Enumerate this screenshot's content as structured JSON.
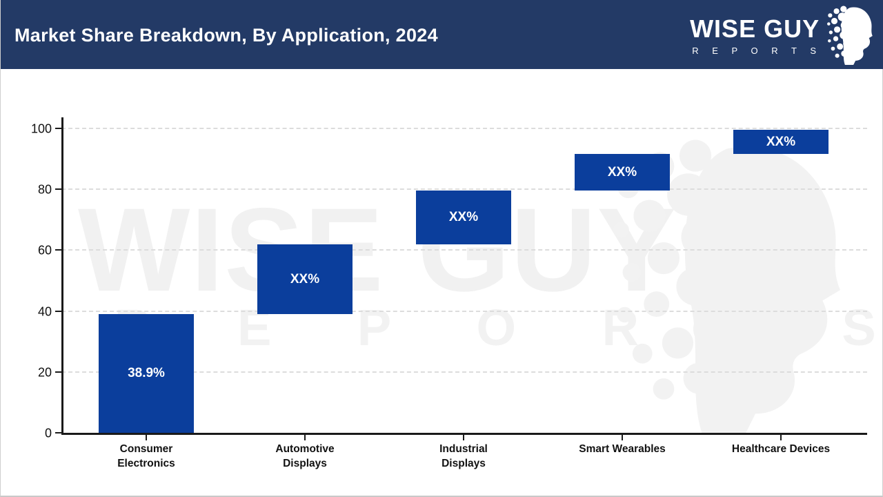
{
  "header": {
    "title": "Market Share Breakdown, By Application, 2024",
    "logo_line1": "WISE GUY",
    "logo_line2": "R E P O R T S",
    "bg_color": "#233a66"
  },
  "watermark": {
    "line1": "WISE GUY",
    "line2": "R E P O R T S"
  },
  "chart_data": {
    "type": "bar",
    "subtype": "floating-segment-waterfall",
    "title": "Market Share Breakdown, By Application, 2024",
    "categories": [
      "Consumer Electronics",
      "Automotive Displays",
      "Industrial Displays",
      "Smart Wearables",
      "Healthcare Devices"
    ],
    "category_label_lines": [
      [
        "Consumer",
        "Electronics"
      ],
      [
        "Automotive",
        "Displays"
      ],
      [
        "Industrial",
        "Displays"
      ],
      [
        "Smart Wearables"
      ],
      [
        "Healthcare Devices"
      ]
    ],
    "segments": [
      {
        "category": "Consumer Electronics",
        "label": "38.9%",
        "start": 0,
        "end": 38.9
      },
      {
        "category": "Automotive Displays",
        "label": "XX%",
        "start": 38.9,
        "end": 62.0
      },
      {
        "category": "Industrial Displays",
        "label": "XX%",
        "start": 62.0,
        "end": 79.5
      },
      {
        "category": "Smart Wearables",
        "label": "XX%",
        "start": 79.5,
        "end": 91.5
      },
      {
        "category": "Healthcare Devices",
        "label": "XX%",
        "start": 91.5,
        "end": 99.5
      }
    ],
    "yticks": [
      0,
      20,
      40,
      60,
      80,
      100
    ],
    "ylim": [
      0,
      105
    ],
    "xlabel": "",
    "ylabel": "",
    "grid": "horizontal-dashed",
    "legend": "none",
    "bar_color": "#0b3e9c",
    "bar_label_color": "#ffffff"
  },
  "colors": {
    "header_bg": "#233a66",
    "bar": "#0b3e9c",
    "axis": "#1a1a1a",
    "grid": "#dcdcdc",
    "watermark": "#f1f1f1",
    "border": "#c9c9c9"
  }
}
